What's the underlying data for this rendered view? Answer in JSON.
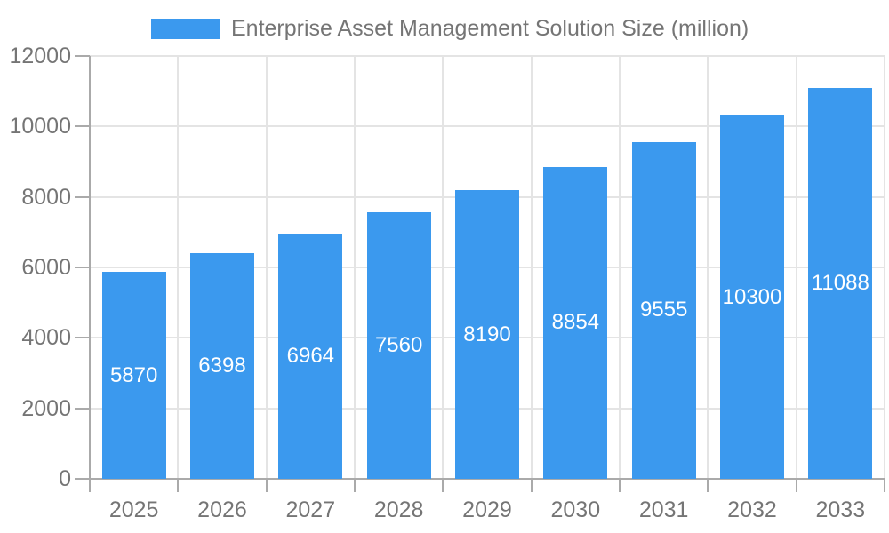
{
  "chart_data": {
    "type": "bar",
    "title": "Enterprise Asset Management Solution Size (million)",
    "categories": [
      "2025",
      "2026",
      "2027",
      "2028",
      "2029",
      "2030",
      "2031",
      "2032",
      "2033"
    ],
    "values": [
      5870,
      6398,
      6964,
      7560,
      8190,
      8854,
      9555,
      10300,
      11088
    ],
    "xlabel": "",
    "ylabel": "",
    "ylim": [
      0,
      12000
    ],
    "yticks": [
      0,
      2000,
      4000,
      6000,
      8000,
      10000,
      12000
    ],
    "grid": true,
    "legend_position": "top",
    "value_label_position": "inside-center",
    "colors": {
      "bar": "#3B99EE",
      "value_label": "#FFFFFF",
      "axis_label": "#757575",
      "legend_label": "#757575",
      "gridline": "#E4E4E4",
      "axis_line": "#AAAAAA",
      "background": "#FFFFFF"
    }
  }
}
